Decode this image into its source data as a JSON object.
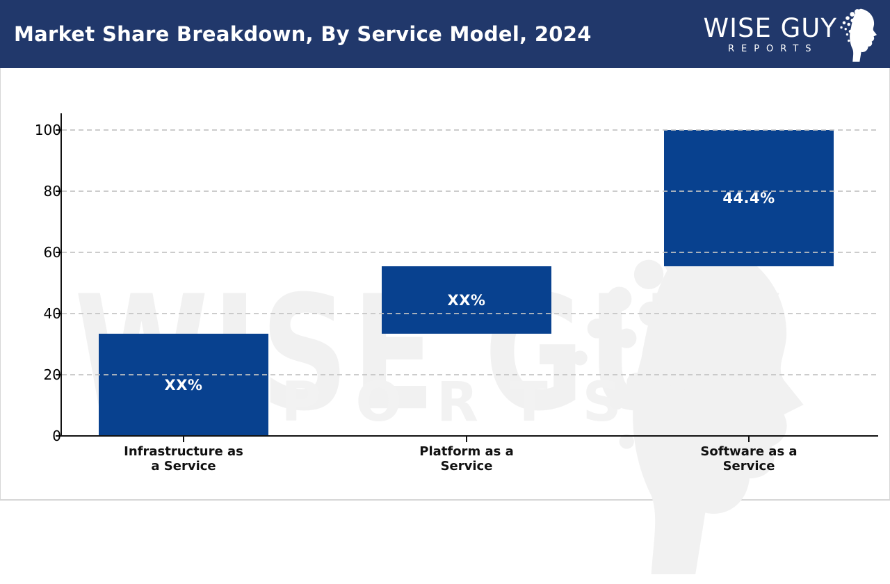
{
  "header": {
    "title": "Market Share Breakdown, By Service Model, 2024",
    "logo": {
      "line1": "WISE GUY",
      "line2": "REPORTS"
    }
  },
  "watermark": {
    "line1": "WISE GUY",
    "line2": "REPORTS"
  },
  "colors": {
    "header_bg": "#21386b",
    "bar": "#08418f",
    "bar_label": "#ffffff",
    "grid": "#c9c9c9",
    "watermark": "#f1f1f1",
    "axis": "#111111"
  },
  "chart_data": {
    "type": "bar",
    "subtype": "floating-segment-waterfall",
    "title": "Market Share Breakdown, By Service Model, 2024",
    "xlabel": "",
    "ylabel": "",
    "ylim": [
      0,
      105
    ],
    "yticks": [
      0,
      20,
      40,
      60,
      80,
      100
    ],
    "grid": "dashed-horizontal",
    "legend": false,
    "categories": [
      "Infrastructure as a Service",
      "Platform as a Service",
      "Software as a Service"
    ],
    "category_lines": [
      [
        "Infrastructure as",
        "a Service"
      ],
      [
        "Platform as a",
        "Service"
      ],
      [
        "Software as a",
        "Service"
      ]
    ],
    "bars": [
      {
        "start": 0,
        "end": 33.3,
        "value": 33.3,
        "label": "XX%"
      },
      {
        "start": 33.3,
        "end": 55.5,
        "value": 22.2,
        "label": "XX%"
      },
      {
        "start": 55.5,
        "end": 99.9,
        "value": 44.4,
        "label": "44.4%"
      }
    ]
  }
}
